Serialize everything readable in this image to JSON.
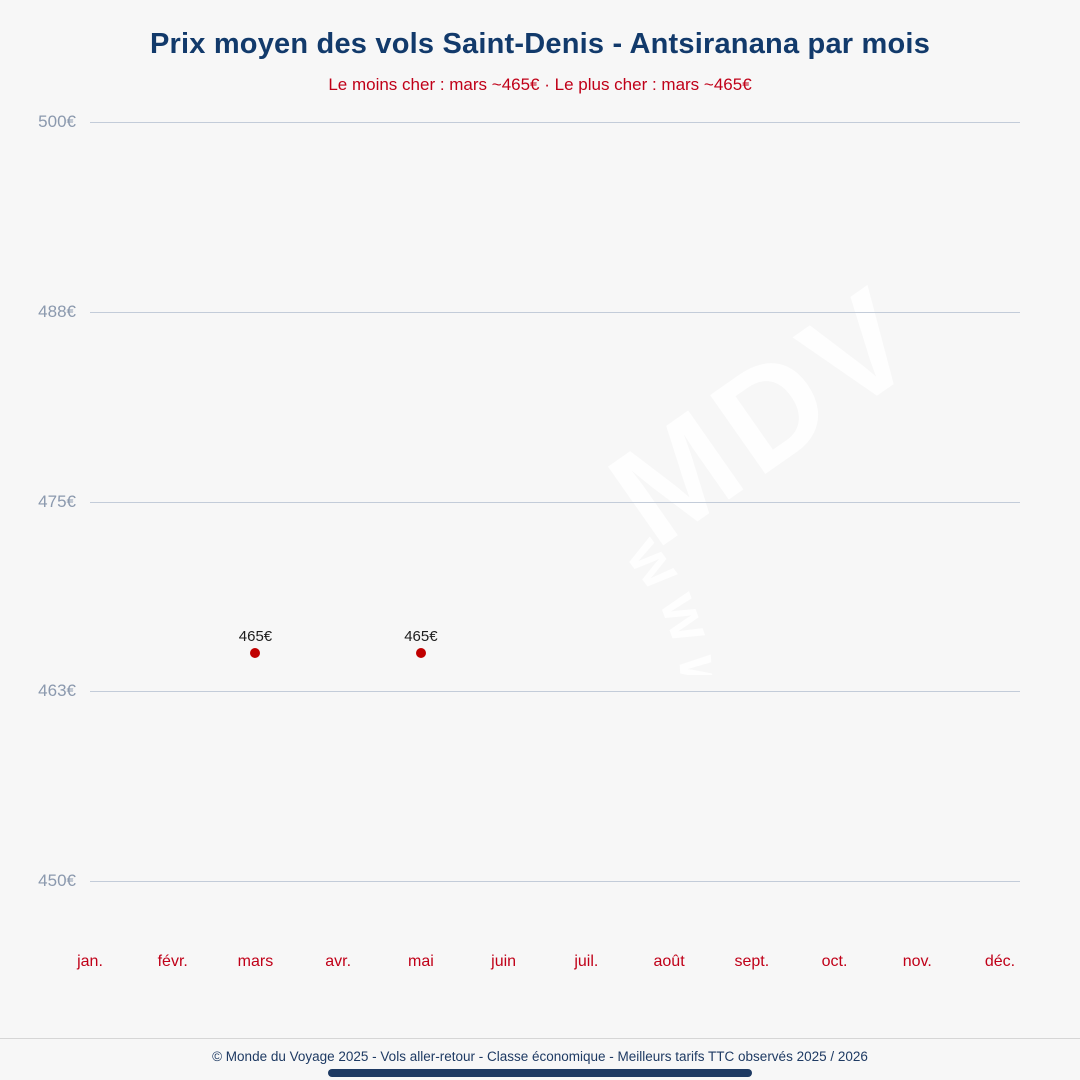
{
  "chart_data": {
    "type": "scatter",
    "title": "Prix moyen des vols Saint-Denis - Antsiranana par mois",
    "subtitle": "Le moins cher : mars ~465€ · Le plus cher : mars ~465€",
    "categories": [
      "jan.",
      "févr.",
      "mars",
      "avr.",
      "mai",
      "juin",
      "juil.",
      "août",
      "sept.",
      "oct.",
      "nov.",
      "déc."
    ],
    "points": [
      {
        "month": "mars",
        "category_index": 2,
        "value": 465,
        "label": "465€"
      },
      {
        "month": "mai",
        "category_index": 4,
        "value": 465,
        "label": "465€"
      }
    ],
    "y_ticks": [
      {
        "value": 500,
        "label": "500€"
      },
      {
        "value": 487.5,
        "label": "488€"
      },
      {
        "value": 475,
        "label": "475€"
      },
      {
        "value": 462.5,
        "label": "463€"
      },
      {
        "value": 450,
        "label": "450€"
      }
    ],
    "ylim": [
      450,
      500
    ],
    "xlabel": "",
    "ylabel": "",
    "grid": true,
    "legend": false,
    "currency": "€"
  },
  "watermark": {
    "circle_text": "www.monde-du-voyage.com ·",
    "center_text": "MDV"
  },
  "footer": {
    "text": "© Monde du Voyage 2025 - Vols aller-retour - Classe économique - Meilleurs tarifs TTC observés 2025 / 2026"
  },
  "colors": {
    "title": "#123a6b",
    "accent_red": "#c00018",
    "point_red": "#c00000",
    "grid_line": "#c3ccd9",
    "y_tick_label": "#8b99ae",
    "footer_navy": "#1e3a63",
    "background": "#f7f7f7"
  }
}
